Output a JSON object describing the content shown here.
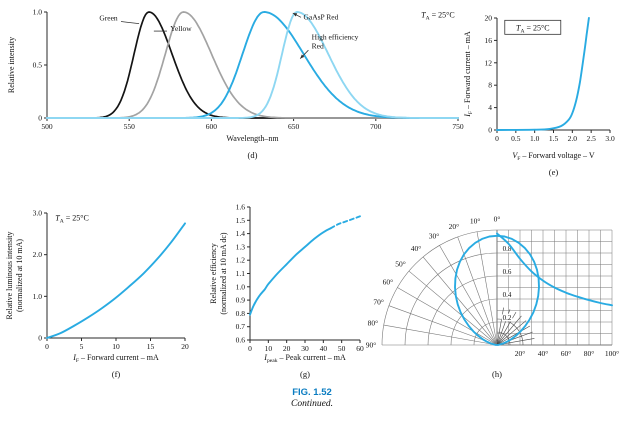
{
  "caption": {
    "fig": "FIG. 1.52",
    "continued": "Continued."
  },
  "colors": {
    "curve_cyan": "#29abe2",
    "curve_light_cyan": "#8ed7f2",
    "curve_gray": "#a3a3a3",
    "curve_black": "#141414",
    "axis": "#2a2a2a",
    "grid": "#777777",
    "caption_blue": "#0a7cc1"
  },
  "chart_data": [
    {
      "id": "d",
      "tag": "(d)",
      "type": "line",
      "condition": {
        "pre": "T",
        "sub": "A",
        "post": " = 25°C"
      },
      "condition_pos": {
        "x": 748,
        "y": 0.95,
        "anchor": "end",
        "box": false
      },
      "xlabel": {
        "post": "Wavelength–nm"
      },
      "ylabel_lines": [
        {
          "post": "Relative intensity"
        }
      ],
      "xlim": [
        500,
        750
      ],
      "ylim": [
        0,
        1
      ],
      "xticks": [
        [
          500,
          "500"
        ],
        [
          550,
          "550"
        ],
        [
          600,
          "600"
        ],
        [
          650,
          "650"
        ],
        [
          700,
          "700"
        ],
        [
          750,
          "750"
        ]
      ],
      "yticks": [
        [
          0,
          "0"
        ],
        [
          0.5,
          "0.5"
        ],
        [
          1,
          "1.0"
        ]
      ],
      "series": [
        {
          "name": "Green",
          "kind": "gauss",
          "peak": 562,
          "sl": 9,
          "sr": 14,
          "amp": 1,
          "color": "curve_black",
          "w": 1.7
        },
        {
          "name": "Yellow",
          "kind": "gauss",
          "peak": 583,
          "sl": 11,
          "sr": 17,
          "amp": 1,
          "color": "curve_gray",
          "w": 1.7
        },
        {
          "name": "High efficiency Red",
          "kind": "gauss",
          "peak": 632,
          "sl": 13,
          "sr": 24,
          "amp": 1,
          "color": "curve_cyan",
          "w": 1.9
        },
        {
          "name": "GaAsP Red",
          "kind": "gauss",
          "peak": 652,
          "sl": 9,
          "sr": 19,
          "amp": 1,
          "color": "curve_light_cyan",
          "w": 1.9
        }
      ],
      "annotations": [
        {
          "lines": [
            "Green"
          ],
          "anchor": "end",
          "tx": 543,
          "ty": 0.92,
          "lx1": 545,
          "ly1": 0.91,
          "lx2": 556,
          "ly2": 0.89,
          "arrow": false
        },
        {
          "lines": [
            "Yellow"
          ],
          "anchor": "start",
          "tx": 575,
          "ty": 0.82,
          "lx1": 573,
          "ly1": 0.82,
          "lx2": 565,
          "ly2": 0.82,
          "arrow": false
        },
        {
          "lines": [
            "GaAsP Red"
          ],
          "anchor": "start",
          "tx": 656,
          "ty": 0.93,
          "lx1": 654.5,
          "ly1": 0.95,
          "lx2": 649.5,
          "ly2": 0.99,
          "arrow": true
        },
        {
          "lines": [
            "High efficiency",
            "Red"
          ],
          "anchor": "start",
          "tx": 661,
          "ty": 0.74,
          "lx1": 659,
          "ly1": 0.64,
          "lx2": 654,
          "ly2": 0.56,
          "arrow": true
        }
      ]
    },
    {
      "id": "e",
      "tag": "(e)",
      "type": "line",
      "condition": {
        "pre": "T",
        "sub": "A",
        "post": " = 25°C"
      },
      "condition_pos": {
        "x": 0.95,
        "y": 17.8,
        "anchor": "middle",
        "box": true
      },
      "xlabel": {
        "pre": "V",
        "sub": "F",
        "post": " – Forward voltage – V"
      },
      "ylabel_lines": [
        {
          "pre": "I",
          "sub": "F",
          "post": " – Forward current – mA"
        }
      ],
      "xlim": [
        0,
        3
      ],
      "ylim": [
        0,
        20
      ],
      "xticks": [
        [
          0,
          "0"
        ],
        [
          0.5,
          "0.5"
        ],
        [
          1,
          "1.0"
        ],
        [
          1.5,
          "1.5"
        ],
        [
          2,
          "2.0"
        ],
        [
          2.5,
          "2.5"
        ],
        [
          3,
          "3.0"
        ]
      ],
      "yticks": [
        [
          0,
          "0"
        ],
        [
          4,
          "4"
        ],
        [
          8,
          "8"
        ],
        [
          12,
          "12"
        ],
        [
          16,
          "16"
        ],
        [
          20,
          "20"
        ]
      ],
      "series": [
        {
          "kind": "points",
          "color": "curve_cyan",
          "w": 1.9,
          "points": [
            [
              0,
              0
            ],
            [
              1,
              0.05
            ],
            [
              1.4,
              0.2
            ],
            [
              1.7,
              0.7
            ],
            [
              1.9,
              1.8
            ],
            [
              2.0,
              3.0
            ],
            [
              2.1,
              5.2
            ],
            [
              2.2,
              8.5
            ],
            [
              2.3,
              13
            ],
            [
              2.38,
              17
            ],
            [
              2.44,
              20
            ]
          ]
        }
      ]
    },
    {
      "id": "f",
      "tag": "(f)",
      "type": "line",
      "condition": {
        "pre": "T",
        "sub": "A",
        "post": " = 25°C"
      },
      "condition_pos": {
        "x": 1.2,
        "y": 2.82,
        "anchor": "start",
        "box": false
      },
      "xlabel": {
        "pre": "I",
        "sub": "F",
        "post": " – Forward current – mA"
      },
      "ylabel_lines": [
        {
          "post": "Relative luminous intensity"
        },
        {
          "post": "(normalized at 10 mA)"
        }
      ],
      "xlim": [
        0,
        20
      ],
      "ylim": [
        0,
        3
      ],
      "xticks": [
        [
          0,
          "0"
        ],
        [
          5,
          "5"
        ],
        [
          10,
          "10"
        ],
        [
          15,
          "15"
        ],
        [
          20,
          "20"
        ]
      ],
      "yticks": [
        [
          0,
          "0"
        ],
        [
          1,
          "1.0"
        ],
        [
          2,
          "2.0"
        ],
        [
          3,
          "3.0"
        ]
      ],
      "series": [
        {
          "kind": "points",
          "color": "curve_cyan",
          "w": 1.9,
          "points": [
            [
              0,
              0
            ],
            [
              2,
              0.12
            ],
            [
              4,
              0.3
            ],
            [
              6,
              0.5
            ],
            [
              8,
              0.72
            ],
            [
              10,
              0.97
            ],
            [
              12,
              1.25
            ],
            [
              14,
              1.55
            ],
            [
              16,
              1.9
            ],
            [
              18,
              2.3
            ],
            [
              20,
              2.75
            ]
          ]
        }
      ]
    },
    {
      "id": "g",
      "tag": "(g)",
      "type": "line",
      "xlabel": {
        "pre": "I",
        "sub": "peak",
        "post": " – Peak current – mA"
      },
      "ylabel_lines": [
        {
          "post": "Relative efficiency"
        },
        {
          "post": "(normalized at 10 mA dc)"
        }
      ],
      "xlim": [
        0,
        60
      ],
      "ylim": [
        0.6,
        1.6
      ],
      "xticks": [
        [
          0,
          "0"
        ],
        [
          10,
          "10"
        ],
        [
          20,
          "20"
        ],
        [
          30,
          "30"
        ],
        [
          40,
          "40"
        ],
        [
          50,
          "50"
        ],
        [
          60,
          "60"
        ]
      ],
      "yticks": [
        [
          0.6,
          "0.6"
        ],
        [
          0.7,
          "0.7"
        ],
        [
          0.8,
          "0.8"
        ],
        [
          0.9,
          "0.9"
        ],
        [
          1,
          "1.0"
        ],
        [
          1.1,
          "1.1"
        ],
        [
          1.2,
          "1.2"
        ],
        [
          1.3,
          "1.3"
        ],
        [
          1.4,
          "1.4"
        ],
        [
          1.5,
          "1.5"
        ],
        [
          1.6,
          "1.6"
        ]
      ],
      "series": [
        {
          "kind": "points",
          "color": "curve_cyan",
          "w": 1.9,
          "points": [
            [
              0,
              0.79
            ],
            [
              2,
              0.86
            ],
            [
              5,
              0.93
            ],
            [
              8,
              0.98
            ],
            [
              10,
              1.02
            ],
            [
              15,
              1.1
            ],
            [
              20,
              1.17
            ],
            [
              25,
              1.24
            ],
            [
              30,
              1.3
            ],
            [
              35,
              1.36
            ],
            [
              40,
              1.41
            ],
            [
              44,
              1.44
            ]
          ]
        },
        {
          "kind": "points",
          "color": "curve_cyan",
          "w": 1.9,
          "dash": true,
          "points": [
            [
              44,
              1.44
            ],
            [
              48,
              1.47
            ],
            [
              52,
              1.49
            ],
            [
              56,
              1.51
            ],
            [
              60,
              1.53
            ]
          ]
        }
      ]
    },
    {
      "id": "h",
      "tag": "(h)",
      "type": "polar",
      "angle_ticks": [
        [
          0,
          "0°"
        ],
        [
          10,
          "10°"
        ],
        [
          20,
          "20°"
        ],
        [
          30,
          "30°"
        ],
        [
          40,
          "40°"
        ],
        [
          50,
          "50°"
        ],
        [
          60,
          "60°"
        ],
        [
          70,
          "70°"
        ],
        [
          80,
          "80°"
        ],
        [
          90,
          "90°"
        ]
      ],
      "rect_angle_ticks": [
        [
          20,
          "20°"
        ],
        [
          40,
          "40°"
        ],
        [
          60,
          "60°"
        ],
        [
          80,
          "80°"
        ],
        [
          100,
          "100°"
        ]
      ],
      "radial_value_labels": [
        [
          0.2,
          "0.2"
        ],
        [
          0.4,
          "0.4"
        ],
        [
          0.6,
          "0.6"
        ],
        [
          0.8,
          "0.8"
        ]
      ],
      "radial_rings": [
        0.2,
        0.4,
        0.6,
        0.8,
        1.0
      ],
      "lobe": {
        "amp": 0.95,
        "exponent": 2
      },
      "cart_points": [
        [
          0,
          0.97
        ],
        [
          10,
          0.88
        ],
        [
          20,
          0.75
        ],
        [
          30,
          0.64
        ],
        [
          40,
          0.56
        ],
        [
          50,
          0.5
        ],
        [
          60,
          0.455
        ],
        [
          70,
          0.42
        ],
        [
          80,
          0.39
        ],
        [
          90,
          0.365
        ],
        [
          100,
          0.345
        ]
      ]
    }
  ]
}
